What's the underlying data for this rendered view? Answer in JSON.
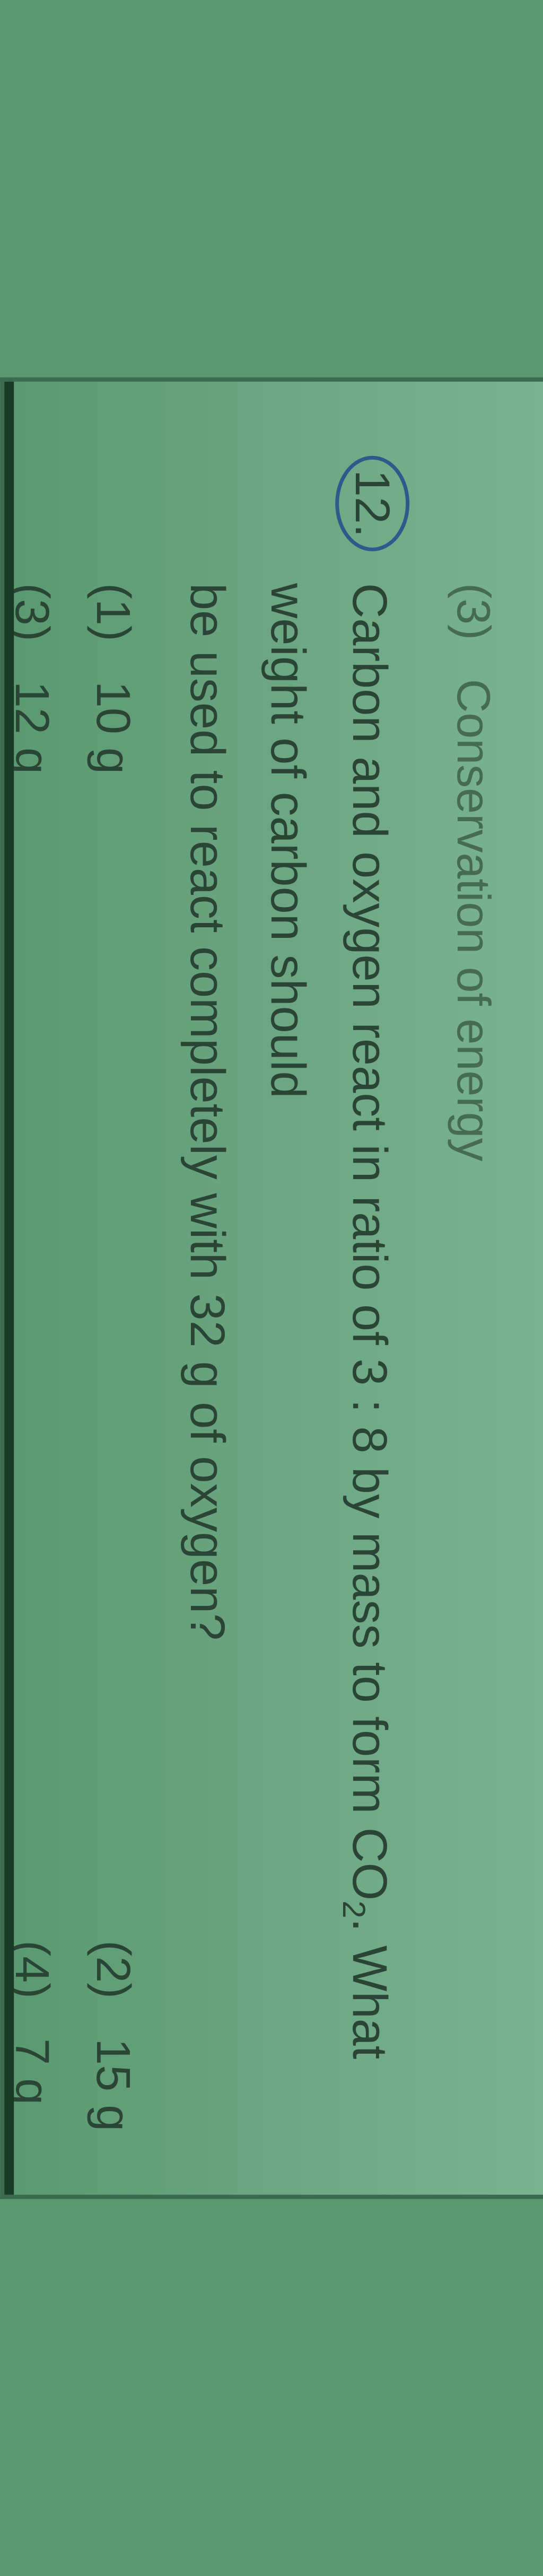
{
  "page": {
    "background_color": "#6fa885",
    "text_color": "#2a4535",
    "circle_border_color": "#2d5a8a",
    "frame_border_color": "#3a6b50",
    "font_size_main": 92,
    "font_size_sub": 60
  },
  "prev_option": {
    "number": "(3)",
    "text": "Conservation of energy"
  },
  "question": {
    "number": "12.",
    "line1_prefix": "Carbon and oxygen react in ratio of 3 : 8 by mass to form CO",
    "line1_sub": "2",
    "line1_suffix": ". What weight of carbon should",
    "line2": "be used to react completely with 32 g of oxygen?"
  },
  "options": {
    "row1": {
      "left_num": "(1)",
      "left_text": "10 g",
      "right_num": "(2)",
      "right_text": "15 g"
    },
    "row2": {
      "left_num": "(3)",
      "left_text": "12 g",
      "right_num": "(4)",
      "right_text": "7 g"
    }
  }
}
